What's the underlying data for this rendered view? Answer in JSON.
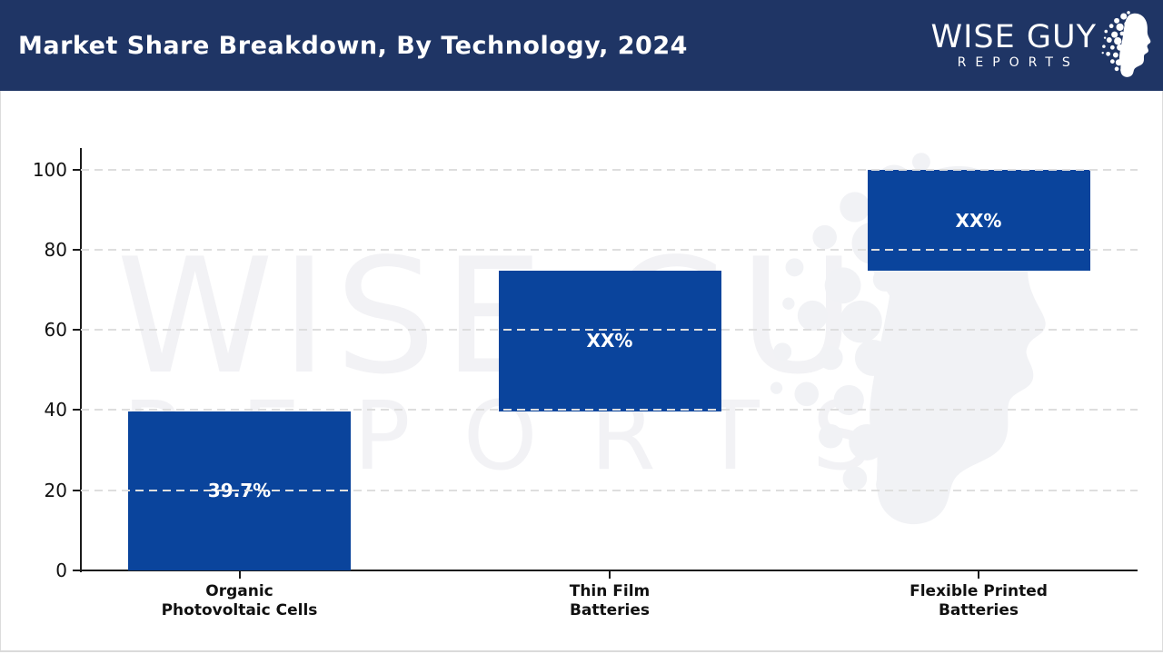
{
  "header": {
    "title": "Market Share Breakdown, By Technology, 2024",
    "logo": {
      "name": "WISE GUY",
      "sub": "REPORTS"
    }
  },
  "watermark": {
    "line1": "WISE GUY",
    "line2": "REPORTS"
  },
  "theme": {
    "header_bg": "#1f3565",
    "logo_color": "#ffffff",
    "watermark_color": "#f2f2f5"
  },
  "chart_data": {
    "type": "bar",
    "variant": "waterfall",
    "title": "Market Share Breakdown, By Technology, 2024",
    "categories": [
      "Organic Photovoltaic Cells",
      "Thin Film Batteries",
      "Flexible Printed Batteries"
    ],
    "category_lines": [
      [
        "Organic",
        "Photovoltaic Cells"
      ],
      [
        "Thin Film",
        "Batteries"
      ],
      [
        "Flexible Printed",
        "Batteries"
      ]
    ],
    "bars": [
      {
        "category": "Organic Photovoltaic Cells",
        "start": 0,
        "end": 39.7,
        "label": "39.7%"
      },
      {
        "category": "Thin Film Batteries",
        "start": 39.7,
        "end": 74.8,
        "label": "XX%"
      },
      {
        "category": "Flexible Printed Batteries",
        "start": 74.8,
        "end": 99.8,
        "label": "XX%"
      }
    ],
    "xlabel": "",
    "ylabel": "",
    "ylim": [
      0,
      105
    ],
    "yticks": [
      0,
      20,
      40,
      60,
      80,
      100
    ],
    "grid": true,
    "gridline_style": "dashed",
    "legend": "none",
    "colors": {
      "bar": "#0a449c",
      "grid": "#dedede",
      "axis": "#1a1a1a",
      "bar_label": "#ffffff"
    }
  }
}
